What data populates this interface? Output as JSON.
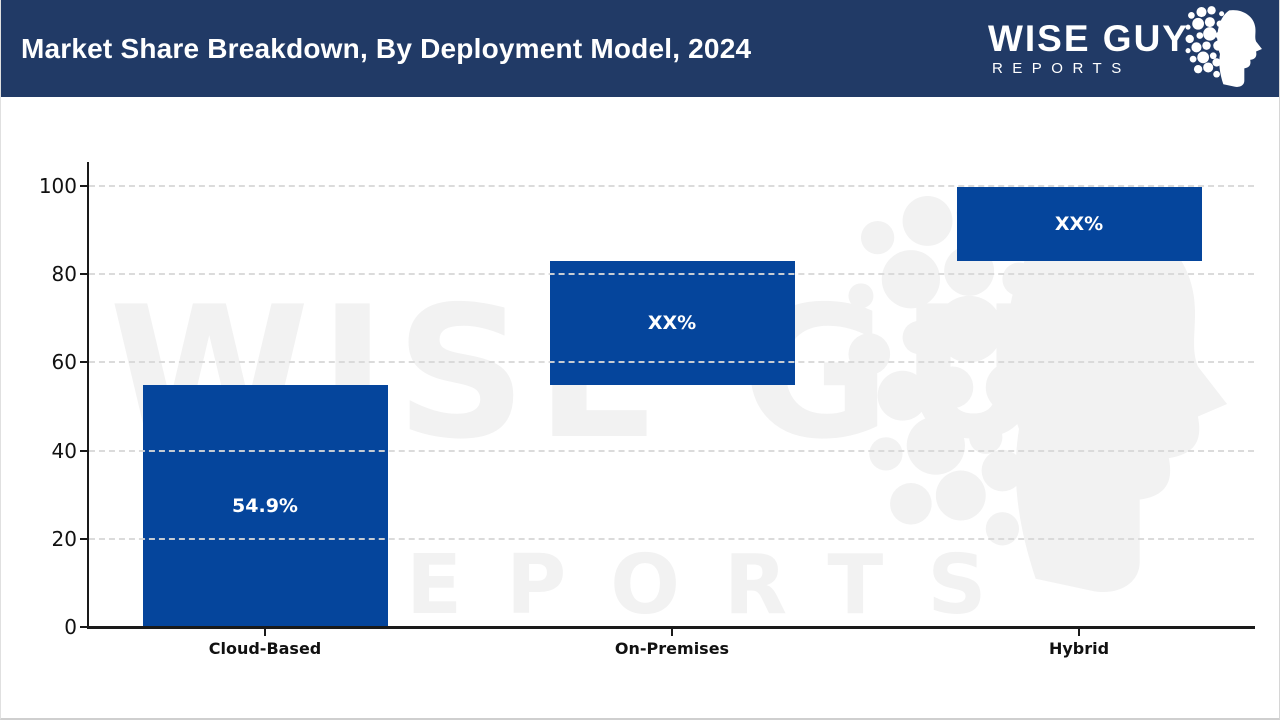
{
  "header": {
    "title": "Market Share Breakdown, By Deployment Model, 2024",
    "logo": {
      "line1": "WISE GUY",
      "line2": "REPORTS"
    }
  },
  "watermark": {
    "line1": "WISE GUY",
    "line2": "REPORTS"
  },
  "chart_data": {
    "type": "bar",
    "subtype": "waterfall",
    "title": "Market Share Breakdown, By Deployment Model, 2024",
    "categories": [
      "Cloud-Based",
      "On-Premises",
      "Hybrid"
    ],
    "series": [
      {
        "name": "Market Share (%)",
        "segments": [
          {
            "category": "Cloud-Based",
            "start": 0,
            "end": 54.9,
            "label": "54.9%"
          },
          {
            "category": "On-Premises",
            "start": 54.9,
            "end": 83.0,
            "label": "XX%"
          },
          {
            "category": "Hybrid",
            "start": 83.0,
            "end": 99.7,
            "label": "XX%"
          }
        ]
      }
    ],
    "yticks": [
      0,
      20,
      40,
      60,
      80,
      100
    ],
    "ylim": [
      0,
      105
    ],
    "xlabel": "",
    "ylabel": "",
    "grid": "dashed-horizontal",
    "legend": "none",
    "bar_color": "#05459c",
    "bar_label_color": "#ffffff",
    "axis_color": "#1a1a1a",
    "gridline_color": "#d8d8d8",
    "header_bg_color": "#213a66",
    "watermark_color": "#f2f2f2"
  }
}
